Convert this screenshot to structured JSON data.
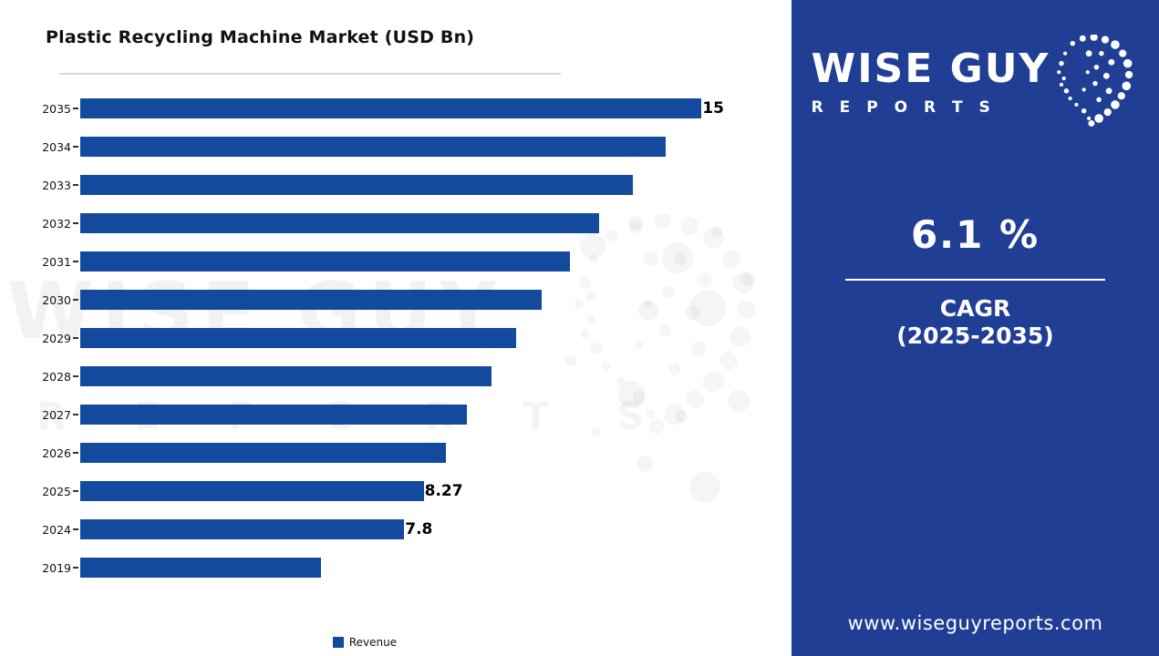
{
  "chart_data": {
    "type": "bar",
    "orientation": "horizontal",
    "title": "Plastic Recycling Machine Market (USD Bn)",
    "categories": [
      "2035",
      "2034",
      "2033",
      "2032",
      "2031",
      "2030",
      "2029",
      "2028",
      "2027",
      "2026",
      "2025",
      "2024",
      "2019"
    ],
    "values": [
      15,
      14.1,
      13.3,
      12.5,
      11.8,
      11.1,
      10.5,
      9.9,
      9.3,
      8.8,
      8.27,
      7.8,
      5.8
    ],
    "value_labels": [
      "15",
      "",
      "",
      "",
      "",
      "",
      "",
      "",
      "",
      "",
      "8.27",
      "7.8",
      ""
    ],
    "xlim": [
      0,
      15.5
    ],
    "legend_label": "Revenue",
    "legend_position": "bottom-center",
    "grid": false,
    "bar_color": "#134A9E"
  },
  "watermark": {
    "line1": "WISE GUY",
    "line2": "R E P O R T S"
  },
  "panel": {
    "bg_color": "#203E94",
    "logo_line1": "WISE GUY",
    "logo_line2": "R E P O R T S",
    "cagr_value": "6.1 %",
    "cagr_label_line1": "CAGR",
    "cagr_label_line2": "(2025-2035)",
    "website": "www.wiseguyreports.com"
  }
}
